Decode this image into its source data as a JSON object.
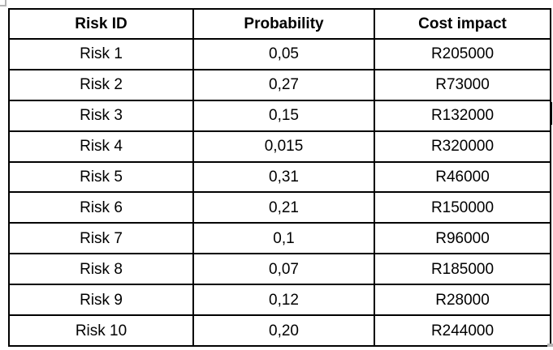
{
  "table": {
    "columns": [
      "Risk ID",
      "Probability",
      "Cost impact"
    ],
    "rows": [
      {
        "id": "Risk 1",
        "probability": "0,05",
        "cost_impact": "R205000"
      },
      {
        "id": "Risk 2",
        "probability": "0,27",
        "cost_impact": "R73000"
      },
      {
        "id": "Risk 3",
        "probability": "0,15",
        "cost_impact": "R132000"
      },
      {
        "id": "Risk 4",
        "probability": "0,015",
        "cost_impact": "R320000"
      },
      {
        "id": "Risk 5",
        "probability": "0,31",
        "cost_impact": "R46000"
      },
      {
        "id": "Risk 6",
        "probability": "0,21",
        "cost_impact": "R150000"
      },
      {
        "id": "Risk 7",
        "probability": "0,1",
        "cost_impact": "R96000"
      },
      {
        "id": "Risk 8",
        "probability": "0,07",
        "cost_impact": "R185000"
      },
      {
        "id": "Risk 9",
        "probability": "0,12",
        "cost_impact": "R28000"
      },
      {
        "id": "Risk 10",
        "probability": "0,20",
        "cost_impact": "R244000"
      }
    ]
  },
  "colors": {
    "border": "#000000",
    "text": "#000000",
    "background": "#ffffff",
    "artifact_gray": "#b3b3b3"
  }
}
